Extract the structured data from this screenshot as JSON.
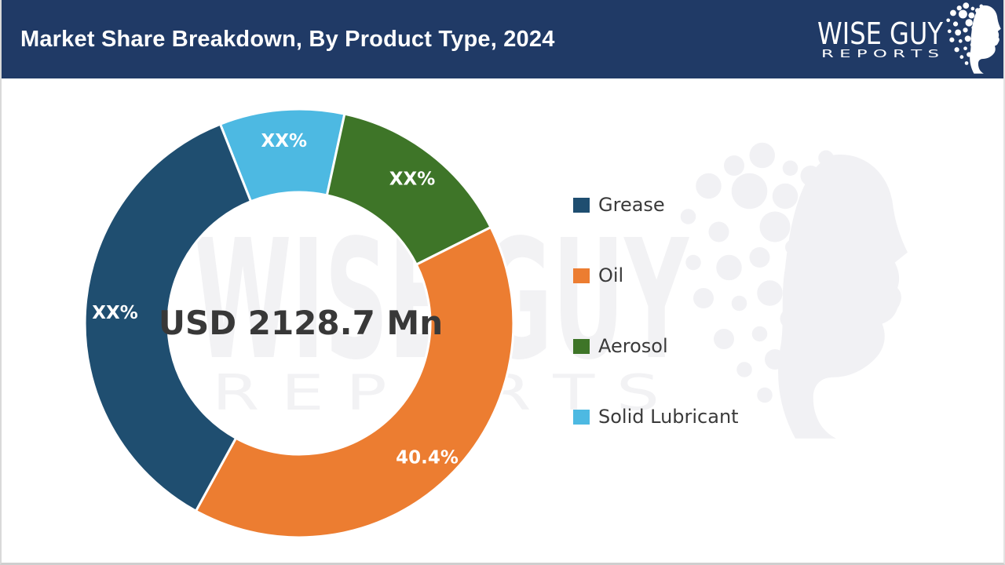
{
  "header": {
    "title": "Market Share Breakdown, By Product Type, 2024",
    "background_color": "#203a66",
    "brand": {
      "name": "WISE GUY",
      "sub": "R E P O R T S"
    }
  },
  "watermark": {
    "name": "WISE GUY",
    "sub": "R E P O R T S"
  },
  "chart_data": {
    "type": "pie",
    "subtype": "donut",
    "title": "Market Share Breakdown, By Product Type, 2024",
    "center_label": "USD 2128.7 Mn",
    "start_angle_deg": -21.6,
    "direction": "clockwise",
    "inner_radius_ratio": 0.61,
    "legend_position": "right",
    "segments": [
      {
        "name": "Solid Lubricant",
        "label": "XX%",
        "value_pct": 9.4,
        "color": "#4db9e2"
      },
      {
        "name": "Aerosol",
        "label": "XX%",
        "value_pct": 14.2,
        "color": "#3e7528"
      },
      {
        "name": "Oil",
        "label": "40.4%",
        "value_pct": 40.4,
        "color": "#ec7d31"
      },
      {
        "name": "Grease",
        "label": "XX%",
        "value_pct": 36.0,
        "color": "#1f4e70"
      }
    ],
    "legend": [
      {
        "label": "Grease",
        "color": "#1f4e70"
      },
      {
        "label": "Oil",
        "color": "#ec7d31"
      },
      {
        "label": "Aerosol",
        "color": "#3e7528"
      },
      {
        "label": "Solid Lubricant",
        "color": "#4db9e2"
      }
    ]
  }
}
